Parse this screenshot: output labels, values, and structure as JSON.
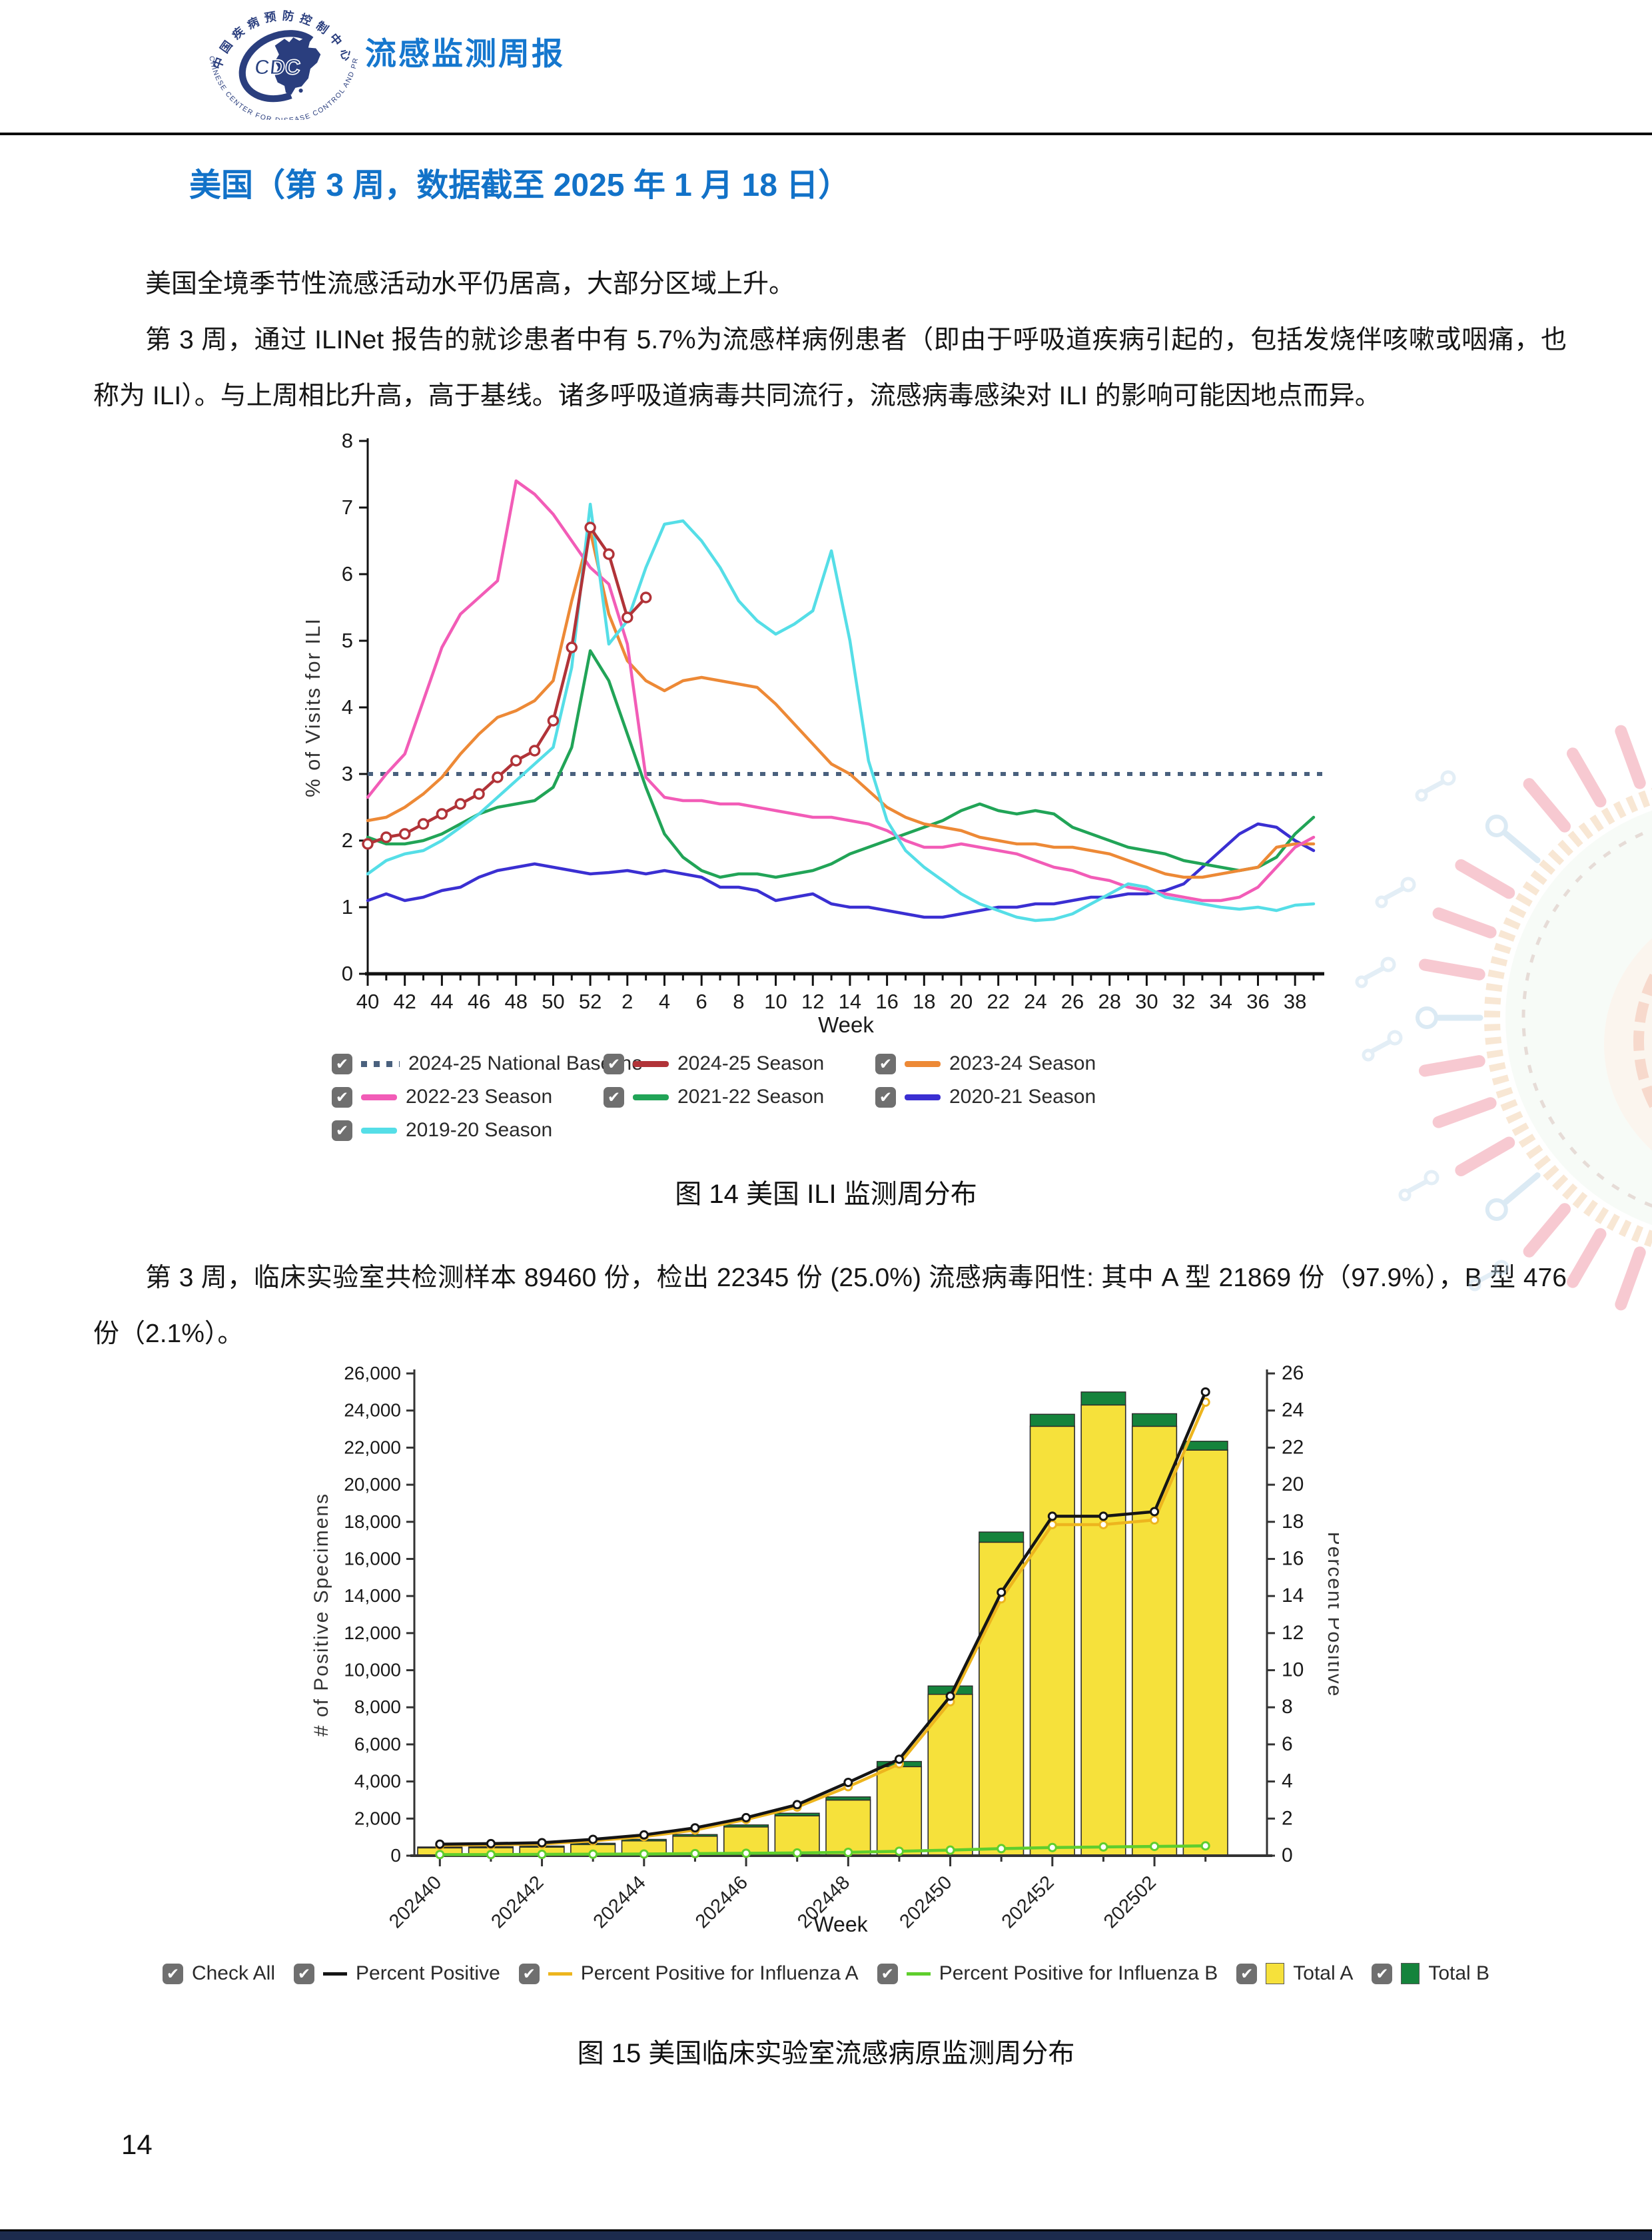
{
  "header": {
    "logo_top_text": "中国疾病预防控制中心",
    "logo_bottom_text": "CHINESE CENTER FOR DISEASE CONTROL AND PREVENTION",
    "logo_cdc": "CDC",
    "brand_title": "流感监测周报"
  },
  "section": {
    "heading": "美国（第 3 周，数据截至 2025 年 1 月 18 日）",
    "paragraph1": "美国全境季节性流感活动水平仍居高，大部分区域上升。",
    "paragraph2": "第 3 周，通过 ILINet 报告的就诊患者中有 5.7%为流感样病例患者（即由于呼吸道疾病引起的，包括发烧伴咳嗽或咽痛，也称为 ILI）。与上周相比升高，高于基线。诸多呼吸道病毒共同流行，流感病毒感染对 ILI 的影响可能因地点而异。",
    "figure14_caption": "图 14  美国 ILI 监测周分布",
    "paragraph3": "第 3 周，临床实验室共检测样本 89460 份，检出 22345 份 (25.0%) 流感病毒阳性: 其中 A 型 21869 份（97.9%），B 型 476 份（2.1%）。",
    "figure15_caption": "图 15  美国临床实验室流感病原监测周分布"
  },
  "page_number": "14",
  "colors": {
    "heading_blue": "#1272C8",
    "brand_blue": "#1577CE",
    "baseline": "#4A617E",
    "season_2024_25": "#B13338",
    "season_2023_24": "#ED8936",
    "season_2022_23": "#F25CB7",
    "season_2021_22": "#21A457",
    "season_2020_21": "#3A2FD2",
    "season_2019_20": "#55DEE7",
    "bar_total_a": "#F6E13B",
    "bar_total_b": "#15833C",
    "line_pct": "#151515",
    "line_pct_a": "#EDB51E",
    "line_pct_b": "#5FCE2D",
    "checkbox_gray": "#6F6F6F"
  },
  "chart_data": [
    {
      "id": "fig14",
      "type": "line",
      "title": "图 14  美国 ILI 监测周分布",
      "xlabel": "Week",
      "ylabel": "% of Visits for ILI",
      "ylim": [
        0,
        8
      ],
      "y_ticks": [
        0,
        1,
        2,
        3,
        4,
        5,
        6,
        7,
        8
      ],
      "x_categories": [
        40,
        41,
        42,
        43,
        44,
        45,
        46,
        47,
        48,
        49,
        50,
        51,
        52,
        1,
        2,
        3,
        4,
        5,
        6,
        7,
        8,
        9,
        10,
        11,
        12,
        13,
        14,
        15,
        16,
        17,
        18,
        19,
        20,
        21,
        22,
        23,
        24,
        25,
        26,
        27,
        28,
        29,
        30,
        31,
        32,
        33,
        34,
        35,
        36,
        37,
        38,
        39
      ],
      "grid": false,
      "legend_position": "bottom-left",
      "baseline": {
        "label": "2024-25 National Baseline",
        "value": 3.0,
        "color": "#4A617E",
        "style": "dotted"
      },
      "series": [
        {
          "name": "2024-25 Season",
          "color": "#B13338",
          "markers": true,
          "values": [
            1.95,
            2.05,
            2.1,
            2.25,
            2.4,
            2.55,
            2.7,
            2.95,
            3.2,
            3.35,
            3.8,
            4.9,
            6.7,
            6.3,
            5.35,
            5.65
          ]
        },
        {
          "name": "2023-24 Season",
          "color": "#ED8936",
          "values": [
            2.3,
            2.35,
            2.5,
            2.7,
            2.95,
            3.3,
            3.6,
            3.85,
            3.95,
            4.1,
            4.4,
            5.6,
            6.65,
            5.4,
            4.7,
            4.4,
            4.25,
            4.4,
            4.45,
            4.4,
            4.35,
            4.3,
            4.05,
            3.75,
            3.45,
            3.15,
            3.0,
            2.75,
            2.5,
            2.35,
            2.25,
            2.2,
            2.15,
            2.05,
            2.0,
            1.95,
            1.95,
            1.9,
            1.9,
            1.85,
            1.8,
            1.7,
            1.6,
            1.5,
            1.45,
            1.45,
            1.5,
            1.55,
            1.6,
            1.9,
            1.95,
            1.95
          ]
        },
        {
          "name": "2022-23 Season",
          "color": "#F25CB7",
          "values": [
            2.65,
            3.0,
            3.3,
            4.1,
            4.9,
            5.4,
            5.65,
            5.9,
            7.4,
            7.2,
            6.9,
            6.5,
            6.1,
            5.85,
            4.95,
            2.95,
            2.65,
            2.6,
            2.6,
            2.55,
            2.55,
            2.5,
            2.45,
            2.4,
            2.35,
            2.35,
            2.3,
            2.25,
            2.15,
            2.0,
            1.9,
            1.9,
            1.95,
            1.9,
            1.85,
            1.8,
            1.7,
            1.6,
            1.55,
            1.45,
            1.4,
            1.3,
            1.25,
            1.2,
            1.15,
            1.1,
            1.1,
            1.15,
            1.3,
            1.6,
            1.9,
            2.05
          ]
        },
        {
          "name": "2021-22 Season",
          "color": "#21A457",
          "values": [
            2.05,
            1.95,
            1.95,
            2.0,
            2.1,
            2.25,
            2.4,
            2.5,
            2.55,
            2.6,
            2.8,
            3.4,
            4.85,
            4.4,
            3.6,
            2.8,
            2.1,
            1.75,
            1.55,
            1.45,
            1.5,
            1.5,
            1.45,
            1.5,
            1.55,
            1.65,
            1.8,
            1.9,
            2.0,
            2.1,
            2.2,
            2.3,
            2.45,
            2.55,
            2.45,
            2.4,
            2.45,
            2.4,
            2.2,
            2.1,
            2.0,
            1.9,
            1.85,
            1.8,
            1.7,
            1.65,
            1.6,
            1.55,
            1.6,
            1.75,
            2.1,
            2.35
          ]
        },
        {
          "name": "2020-21 Season",
          "color": "#3A2FD2",
          "values": [
            1.1,
            1.2,
            1.1,
            1.15,
            1.25,
            1.3,
            1.45,
            1.55,
            1.6,
            1.65,
            1.6,
            1.55,
            1.5,
            1.52,
            1.55,
            1.5,
            1.55,
            1.5,
            1.45,
            1.3,
            1.3,
            1.25,
            1.1,
            1.15,
            1.2,
            1.05,
            1.0,
            1.0,
            0.95,
            0.9,
            0.85,
            0.85,
            0.9,
            0.95,
            1.0,
            1.0,
            1.05,
            1.05,
            1.1,
            1.15,
            1.15,
            1.2,
            1.2,
            1.25,
            1.35,
            1.6,
            1.85,
            2.1,
            2.25,
            2.2,
            2.0,
            1.85
          ]
        },
        {
          "name": "2019-20 Season",
          "color": "#55DEE7",
          "values": [
            1.5,
            1.7,
            1.8,
            1.85,
            2.0,
            2.2,
            2.4,
            2.65,
            2.9,
            3.15,
            3.4,
            4.6,
            7.05,
            4.95,
            5.3,
            6.1,
            6.75,
            6.8,
            6.5,
            6.1,
            5.6,
            5.3,
            5.1,
            5.25,
            5.45,
            6.35,
            5.0,
            3.2,
            2.3,
            1.85,
            1.6,
            1.4,
            1.2,
            1.05,
            0.95,
            0.85,
            0.8,
            0.82,
            0.9,
            1.05,
            1.2,
            1.35,
            1.3,
            1.15,
            1.1,
            1.05,
            1.0,
            0.97,
            1.0,
            0.95,
            1.03,
            1.05
          ]
        }
      ],
      "legend_items": [
        {
          "swatch": "dotted",
          "color": "#4A617E",
          "label": "2024-25 National Baseline"
        },
        {
          "swatch": "line",
          "color": "#B13338",
          "label": "2024-25 Season"
        },
        {
          "swatch": "line",
          "color": "#ED8936",
          "label": "2023-24 Season"
        },
        {
          "swatch": "line",
          "color": "#F25CB7",
          "label": "2022-23 Season"
        },
        {
          "swatch": "line",
          "color": "#21A457",
          "label": "2021-22 Season"
        },
        {
          "swatch": "line",
          "color": "#3A2FD2",
          "label": "2020-21 Season"
        },
        {
          "swatch": "line",
          "color": "#55DEE7",
          "label": "2019-20 Season"
        }
      ]
    },
    {
      "id": "fig15",
      "type": "bar",
      "title": "图 15  美国临床实验室流感病原监测周分布",
      "xlabel": "Week",
      "ylabel_left": "# of Positive Specimens",
      "ylabel_right": "Percent Positive",
      "ylim_left": [
        0,
        26000
      ],
      "ylim_right": [
        0,
        26
      ],
      "y_step_left": 2000,
      "y_step_right": 2,
      "categories": [
        "202440",
        "202441",
        "202442",
        "202443",
        "202444",
        "202445",
        "202446",
        "202447",
        "202448",
        "202449",
        "202450",
        "202451",
        "202452",
        "202501",
        "202502",
        "202503"
      ],
      "x_tick_labels": [
        "202440",
        "202442",
        "202444",
        "202446",
        "202448",
        "202450",
        "202452",
        "202502"
      ],
      "bar_series": [
        {
          "name": "Total A",
          "color": "#F6E13B",
          "values": [
            420,
            430,
            460,
            600,
            800,
            1050,
            1550,
            2150,
            3000,
            4800,
            8700,
            16900,
            23150,
            24300,
            23150,
            21869
          ]
        },
        {
          "name": "Total B",
          "color": "#15833C",
          "values": [
            50,
            55,
            60,
            70,
            80,
            90,
            110,
            140,
            170,
            280,
            450,
            550,
            650,
            700,
            680,
            476
          ]
        }
      ],
      "line_series": [
        {
          "name": "Percent Positive",
          "color": "#151515",
          "values": [
            0.62,
            0.65,
            0.7,
            0.88,
            1.12,
            1.5,
            2.05,
            2.75,
            3.95,
            5.2,
            8.6,
            14.2,
            18.3,
            18.3,
            18.55,
            25.0
          ]
        },
        {
          "name": "Percent Positive for Influenza A",
          "color": "#EDB51E",
          "values": [
            0.56,
            0.59,
            0.63,
            0.8,
            1.03,
            1.38,
            1.95,
            2.62,
            3.72,
            4.95,
            8.3,
            13.85,
            17.85,
            17.85,
            18.1,
            24.45
          ]
        },
        {
          "name": "Percent Positive for Influenza B",
          "color": "#5FCE2D",
          "values": [
            0.06,
            0.06,
            0.07,
            0.08,
            0.09,
            0.11,
            0.13,
            0.15,
            0.18,
            0.24,
            0.3,
            0.38,
            0.44,
            0.47,
            0.5,
            0.53
          ]
        }
      ],
      "legend_items": [
        {
          "swatch": "none",
          "label": "Check All"
        },
        {
          "swatch": "dash",
          "color": "#151515",
          "label": "Percent Positive"
        },
        {
          "swatch": "dash",
          "color": "#EDB51E",
          "label": "Percent Positive for Influenza A"
        },
        {
          "swatch": "dash",
          "color": "#5FCE2D",
          "label": "Percent Positive for Influenza B"
        },
        {
          "swatch": "rect",
          "color": "#F6E13B",
          "label": "Total A"
        },
        {
          "swatch": "rect",
          "color": "#15833C",
          "label": "Total B"
        }
      ]
    }
  ]
}
